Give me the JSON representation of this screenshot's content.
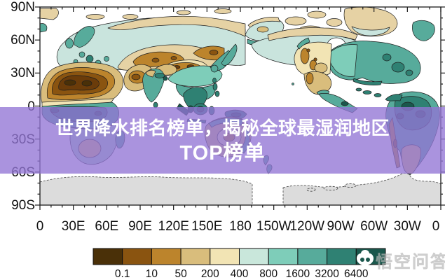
{
  "banner": {
    "line1": "世界降水排名榜单，揭秘全球最湿润地区",
    "line2": "TOP榜单"
  },
  "map": {
    "y_axis_labels": [
      "90N",
      "60N",
      "30N",
      "0",
      "30S",
      "60S",
      "90S"
    ],
    "x_axis_labels": [
      "0",
      "30E",
      "60E",
      "90E",
      "120E",
      "150E",
      "180",
      "150W",
      "120W",
      "90W",
      "60W",
      "30W",
      "0"
    ]
  },
  "legend": {
    "colors": [
      "#4a3008",
      "#8a5410",
      "#bc842c",
      "#d9bd7c",
      "#f2e4b4",
      "#c9e7db",
      "#7ecdb9",
      "#57ab9b",
      "#2f8173",
      "#1a574c"
    ],
    "tick_labels": [
      "0.1",
      "10",
      "50",
      "200",
      "400",
      "800",
      "1600",
      "3200",
      "6400"
    ]
  },
  "watermark": {
    "text": "悟空问答"
  },
  "chart_data": {
    "type": "heatmap",
    "description": "Global annual precipitation filled-contour world map (0-360E longitude axis), oceans white, Antarctica gray (no data)",
    "legend_bins_mm": [
      0.1,
      10,
      50,
      200,
      400,
      800,
      1600,
      3200,
      6400
    ],
    "lat_ticks": [
      "90N",
      "60N",
      "30N",
      "0",
      "30S",
      "60S",
      "90S"
    ],
    "lon_ticks": [
      "0",
      "30E",
      "60E",
      "90E",
      "120E",
      "150E",
      "180",
      "150W",
      "120W",
      "90W",
      "60W",
      "30W",
      "0"
    ]
  },
  "colors": {
    "banner_purple": "#9275d5",
    "ocean": "#ffffff",
    "antarctica_gray": "#dcdcdc"
  }
}
